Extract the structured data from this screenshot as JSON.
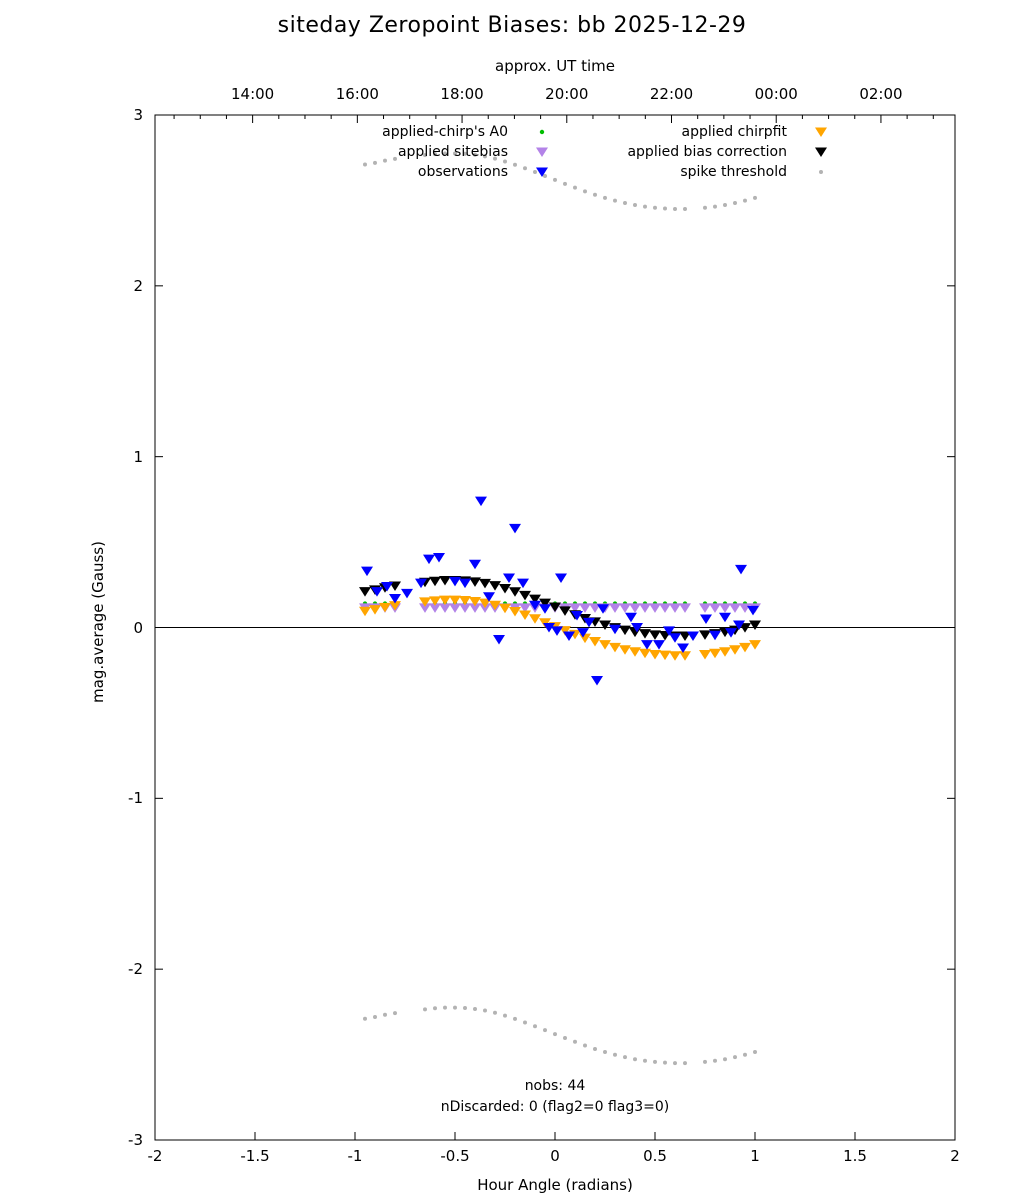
{
  "title": "siteday Zeropoint Biases:  bb  2025-12-29",
  "annotations": {
    "nobs": "nobs: 44",
    "ndiscarded": "nDiscarded: 0  (flag2=0  flag3=0)"
  },
  "chart_data": {
    "type": "scatter",
    "title": "siteday Zeropoint Biases:  bb  2025-12-29",
    "xlabel": "Hour Angle (radians)",
    "x2label": "approx. UT time",
    "ylabel": "mag.average (Gauss)",
    "xlim": [
      -2,
      2
    ],
    "ylim": [
      -3,
      3
    ],
    "grid": false,
    "x_ticks": [
      -2,
      -1.5,
      -1,
      -0.5,
      0,
      0.5,
      1,
      1.5,
      2
    ],
    "x_tick_labels": [
      "-2",
      "-1.5",
      "-1",
      "-0.5",
      "0",
      "0.5",
      "1",
      "1.5",
      "2"
    ],
    "y_ticks": [
      -3,
      -2,
      -1,
      0,
      1,
      2,
      3
    ],
    "y_tick_labels": [
      "-3",
      "-2",
      "-1",
      "0",
      "1",
      "2",
      "3"
    ],
    "x2_ticks": [
      {
        "ha": -1.5119,
        "label": "14:00"
      },
      {
        "ha": -0.9883,
        "label": "16:00"
      },
      {
        "ha": -0.4647,
        "label": "18:00"
      },
      {
        "ha": 0.0589,
        "label": "20:00"
      },
      {
        "ha": 0.5825,
        "label": "22:00"
      },
      {
        "ha": 1.1061,
        "label": "00:00"
      },
      {
        "ha": 1.6297,
        "label": "02:00"
      }
    ],
    "x2_minor_per_major": 4,
    "zero_line": 0,
    "fit_x": [
      -0.95,
      -0.9,
      -0.85,
      -0.8,
      -0.65,
      -0.6,
      -0.55,
      -0.5,
      -0.45,
      -0.4,
      -0.35,
      -0.3,
      -0.25,
      -0.2,
      -0.15,
      -0.1,
      -0.05,
      0.0,
      0.05,
      0.1,
      0.15,
      0.2,
      0.25,
      0.3,
      0.35,
      0.4,
      0.45,
      0.5,
      0.55,
      0.6,
      0.65,
      0.75,
      0.8,
      0.85,
      0.9,
      0.95,
      1.0
    ],
    "series": {
      "applied_chirps_a0": {
        "label": "applied-chirp's A0",
        "color": "#00bd00",
        "marker": "dot-small",
        "constant_value": 0.14
      },
      "applied_sitebias": {
        "label": "applied sitebias",
        "color": "#b383e8",
        "marker": "triangle-down",
        "constant_value": 0.115
      },
      "observations": {
        "label": "observations",
        "color": "#0000ff",
        "marker": "triangle-down",
        "points": [
          [
            -0.94,
            0.33
          ],
          [
            -0.89,
            0.21
          ],
          [
            -0.84,
            0.24
          ],
          [
            -0.8,
            0.17
          ],
          [
            -0.74,
            0.2
          ],
          [
            -0.67,
            0.26
          ],
          [
            -0.63,
            0.4
          ],
          [
            -0.58,
            0.41
          ],
          [
            -0.5,
            0.27
          ],
          [
            -0.45,
            0.26
          ],
          [
            -0.4,
            0.37
          ],
          [
            -0.37,
            0.74
          ],
          [
            -0.33,
            0.18
          ],
          [
            -0.28,
            -0.07
          ],
          [
            -0.23,
            0.29
          ],
          [
            -0.2,
            0.58
          ],
          [
            -0.16,
            0.26
          ],
          [
            -0.1,
            0.13
          ],
          [
            -0.05,
            0.11
          ],
          [
            -0.03,
            0.0
          ],
          [
            0.01,
            -0.02
          ],
          [
            0.03,
            0.29
          ],
          [
            0.07,
            -0.05
          ],
          [
            0.11,
            0.07
          ],
          [
            0.14,
            -0.03
          ],
          [
            0.17,
            0.03
          ],
          [
            0.21,
            -0.31
          ],
          [
            0.24,
            0.11
          ],
          [
            0.3,
            -0.01
          ],
          [
            0.38,
            0.06
          ],
          [
            0.41,
            0.0
          ],
          [
            0.46,
            -0.1
          ],
          [
            0.52,
            -0.1
          ],
          [
            0.57,
            -0.02
          ],
          [
            0.6,
            -0.06
          ],
          [
            0.64,
            -0.12
          ],
          [
            0.69,
            -0.05
          ],
          [
            0.755,
            0.05
          ],
          [
            0.8,
            -0.045
          ],
          [
            0.85,
            0.06
          ],
          [
            0.88,
            -0.03
          ],
          [
            0.92,
            0.015
          ],
          [
            0.93,
            0.34
          ],
          [
            0.99,
            0.1
          ]
        ]
      },
      "applied_chirpfit": {
        "label": "applied chirpfit",
        "color": "#ffa500",
        "marker": "triangle-down",
        "values": [
          0.095,
          0.105,
          0.118,
          0.128,
          0.15,
          0.156,
          0.16,
          0.16,
          0.158,
          0.152,
          0.143,
          0.13,
          0.113,
          0.094,
          0.073,
          0.051,
          0.028,
          0.005,
          -0.018,
          -0.04,
          -0.062,
          -0.082,
          -0.1,
          -0.116,
          -0.13,
          -0.142,
          -0.151,
          -0.158,
          -0.162,
          -0.165,
          -0.165,
          -0.158,
          -0.151,
          -0.142,
          -0.13,
          -0.116,
          -0.1
        ]
      },
      "applied_bias_correction": {
        "label": "applied bias correction",
        "color": "#000000",
        "marker": "triangle-down",
        "values": [
          0.21,
          0.22,
          0.233,
          0.243,
          0.265,
          0.271,
          0.275,
          0.275,
          0.273,
          0.267,
          0.258,
          0.245,
          0.228,
          0.209,
          0.188,
          0.166,
          0.143,
          0.12,
          0.097,
          0.075,
          0.053,
          0.033,
          0.015,
          -0.001,
          -0.015,
          -0.027,
          -0.036,
          -0.043,
          -0.047,
          -0.05,
          -0.05,
          -0.043,
          -0.036,
          -0.027,
          -0.015,
          -0.001,
          0.015
        ]
      },
      "spike_threshold": {
        "label": "spike threshold",
        "color": "#b3b3b3",
        "marker": "dot",
        "offset_from_bias_correction": 2.5
      }
    },
    "legend": {
      "position": "top-inside",
      "left_column": [
        "applied_chirps_a0",
        "applied_sitebias",
        "observations"
      ],
      "right_column": [
        "applied_chirpfit",
        "applied_bias_correction",
        "spike_threshold"
      ]
    }
  }
}
